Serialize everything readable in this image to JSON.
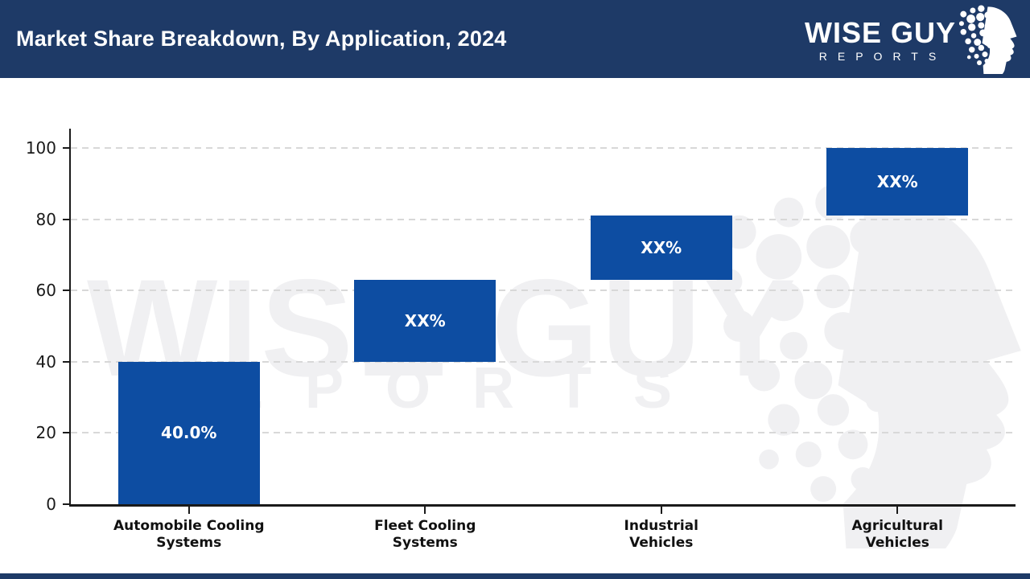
{
  "header": {
    "title": "Market Share Breakdown, By Application, 2024",
    "bg_color": "#1e3a67",
    "brand": {
      "line1": "WISE GUY",
      "line2": "REPORTS"
    }
  },
  "watermark": {
    "line1": "WISE GUY",
    "line2": "REPORTS"
  },
  "chart_data": {
    "type": "bar",
    "subtype": "floating_range_segments",
    "title": "Market Share Breakdown, By Application, 2024",
    "categories": [
      "Automobile Cooling\nSystems",
      "Fleet Cooling\nSystems",
      "Industrial\nVehicles",
      "Agricultural\nVehicles"
    ],
    "segments": [
      {
        "category": "Automobile Cooling Systems",
        "start": 0,
        "end": 40,
        "label": "40.0%"
      },
      {
        "category": "Fleet Cooling Systems",
        "start": 40,
        "end": 63,
        "label": "XX%"
      },
      {
        "category": "Industrial Vehicles",
        "start": 63,
        "end": 81,
        "label": "XX%"
      },
      {
        "category": "Agricultural Vehicles",
        "start": 81,
        "end": 100,
        "label": "XX%"
      }
    ],
    "ylim": [
      0,
      100
    ],
    "yticks": [
      0,
      20,
      40,
      60,
      80,
      100
    ],
    "ytick_labels": [
      "0",
      "20",
      "40",
      "60",
      "80",
      "100"
    ],
    "grid": {
      "horizontal": true,
      "style": "dashed",
      "color": "#d8d8d8"
    },
    "legend": "none",
    "bar_color": "#0d4da2",
    "bar_label_color": "#ffffff",
    "axis_color": "#1a1a1a"
  },
  "footer": {
    "bar_color": "#1e3a67"
  }
}
